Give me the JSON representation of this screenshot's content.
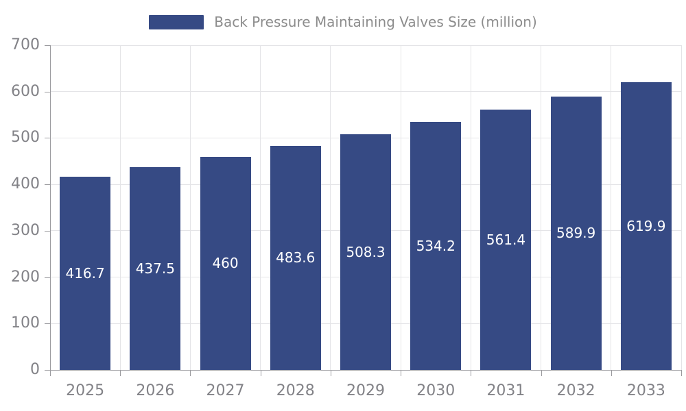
{
  "legend": {
    "label": "Back Pressure Maintaining Valves Size (million)"
  },
  "chart_data": {
    "type": "bar",
    "title": "Back Pressure Maintaining Valves Size (million)",
    "categories": [
      "2025",
      "2026",
      "2027",
      "2028",
      "2029",
      "2030",
      "2031",
      "2032",
      "2033"
    ],
    "values": [
      416.7,
      437.5,
      460,
      483.6,
      508.3,
      534.2,
      561.4,
      589.9,
      619.9
    ],
    "series": [
      {
        "name": "Back Pressure Maintaining Valves Size (million)",
        "values": [
          416.7,
          437.5,
          460,
          483.6,
          508.3,
          534.2,
          561.4,
          589.9,
          619.9
        ]
      }
    ],
    "xlabel": "",
    "ylabel": "",
    "ylim": [
      0,
      700
    ],
    "y_ticks": [
      0,
      100,
      200,
      300,
      400,
      500,
      600,
      700
    ],
    "grid": true,
    "value_labels_inside_bars": true,
    "legend_position": "top-center",
    "colors": {
      "bar": "#364a84",
      "bar_label_text": "#ffffff",
      "axis_text": "#828287",
      "legend_text": "#8c8c8c",
      "gridline": "#e4e4e7",
      "axis_line": "#9b9b9f",
      "background": "#ffffff"
    }
  }
}
